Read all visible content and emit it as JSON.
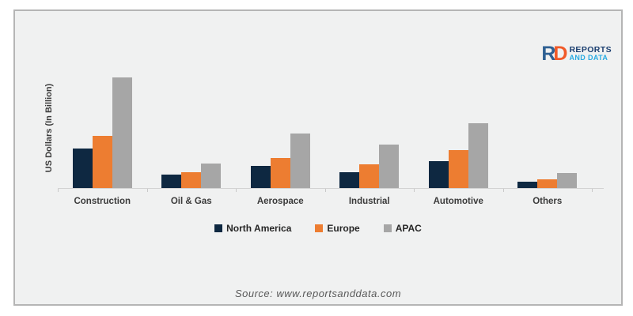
{
  "logo": {
    "r": "R",
    "d": "D",
    "line1": "REPORTS",
    "line2": "AND DATA",
    "colors": {
      "r": "#2e6093",
      "d": "#f15a29",
      "line1": "#1b3f70",
      "line2": "#29abe2"
    }
  },
  "chart_data": {
    "type": "bar",
    "title": "",
    "xlabel": "",
    "ylabel": "US Dollars (In Billion)",
    "categories": [
      "Construction",
      "Oil & Gas",
      "Aerospace",
      "Industrial",
      "Automotive",
      "Others"
    ],
    "series": [
      {
        "name": "North America",
        "color": "#0e2841",
        "values": [
          5.0,
          1.7,
          2.8,
          2.0,
          3.4,
          0.8
        ]
      },
      {
        "name": "Europe",
        "color": "#ed7d31",
        "values": [
          6.6,
          2.0,
          3.8,
          3.0,
          4.8,
          1.1
        ]
      },
      {
        "name": "APAC",
        "color": "#a6a6a6",
        "values": [
          14.0,
          3.1,
          6.9,
          5.5,
          8.2,
          1.9
        ]
      }
    ],
    "ylim": [
      0,
      16
    ],
    "grid": false,
    "legend_position": "bottom",
    "y_tick_labels_visible": false
  },
  "source": {
    "text": "Source: www.reportsanddata.com"
  }
}
